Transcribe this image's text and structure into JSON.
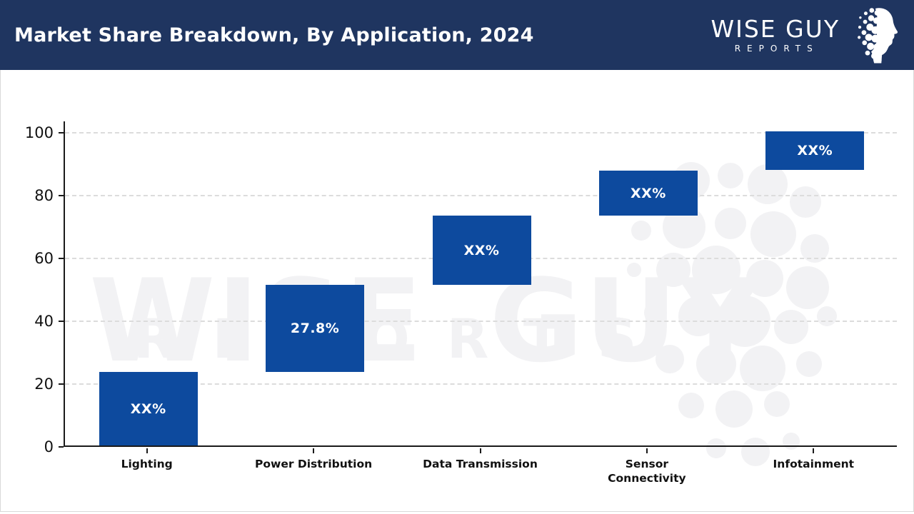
{
  "header": {
    "title": "Market Share Breakdown, By Application, 2024",
    "bg_color": "#1f3560",
    "text_color": "#ffffff",
    "logo": {
      "line1": "WISE GUY",
      "line2": "REPORTS"
    }
  },
  "watermark": {
    "line1": "WISE GUY",
    "line2": "REPORTS"
  },
  "chart_data": {
    "type": "bar",
    "subtype": "waterfall",
    "title": "Market Share Breakdown, By Application, 2024",
    "categories": [
      "Lighting",
      "Power Distribution",
      "Data Transmission",
      "Sensor Connectivity",
      "Infotainment"
    ],
    "tick_labels": [
      "Lighting",
      "Power Distribution",
      "Data Transmission",
      "Sensor\nConnectivity",
      "Infotainment"
    ],
    "segments": [
      {
        "category": "Lighting",
        "start": 0,
        "end": 23.3,
        "value": 23.3,
        "label": "XX%"
      },
      {
        "category": "Power Distribution",
        "start": 23.3,
        "end": 51.1,
        "value": 27.8,
        "label": "27.8%"
      },
      {
        "category": "Data Transmission",
        "start": 51.1,
        "end": 73.1,
        "value": 22.0,
        "label": "XX%"
      },
      {
        "category": "Sensor Connectivity",
        "start": 73.1,
        "end": 87.5,
        "value": 14.4,
        "label": "XX%"
      },
      {
        "category": "Infotainment",
        "start": 87.6,
        "end": 100,
        "value": 12.4,
        "label": "XX%"
      }
    ],
    "bar_color": "#0d4a9e",
    "label_color": "#ffffff",
    "xlabel": "",
    "ylabel": "",
    "ylim": [
      0,
      100
    ],
    "yticks": [
      0,
      20,
      40,
      60,
      80,
      100
    ],
    "grid": "horizontal-dashed",
    "legend": "none"
  }
}
